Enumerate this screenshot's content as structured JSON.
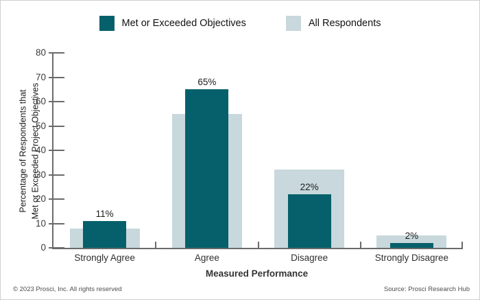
{
  "legend": [
    {
      "label": "Met or Exceeded Objectives",
      "color": "#06606b"
    },
    {
      "label": "All Respondents",
      "color": "#c8d8dc"
    }
  ],
  "chart_data": {
    "type": "bar",
    "style": "overlay",
    "categories": [
      "Strongly Agree",
      "Agree",
      "Disagree",
      "Strongly Disagree"
    ],
    "series": [
      {
        "name": "Met or Exceeded Objectives",
        "color": "#06606b",
        "values": [
          11,
          65,
          22,
          2
        ],
        "value_labels": [
          "11%",
          "65%",
          "22%",
          "2%"
        ]
      },
      {
        "name": "All Respondents",
        "color": "#c8d8dc",
        "values": [
          8,
          55,
          32,
          5
        ]
      }
    ],
    "xlabel": "Measured Performance",
    "ylabel_lines": [
      "Percentage of Respondents that",
      "Met or Exceeded Project Objectives"
    ],
    "ylim": [
      0,
      80
    ],
    "ytick_step": 10,
    "grid": false,
    "legend_position": "top"
  },
  "footer": {
    "copyright": "© 2023 Prosci, Inc. All rights reserved",
    "source": "Source: Prosci Research Hub"
  }
}
